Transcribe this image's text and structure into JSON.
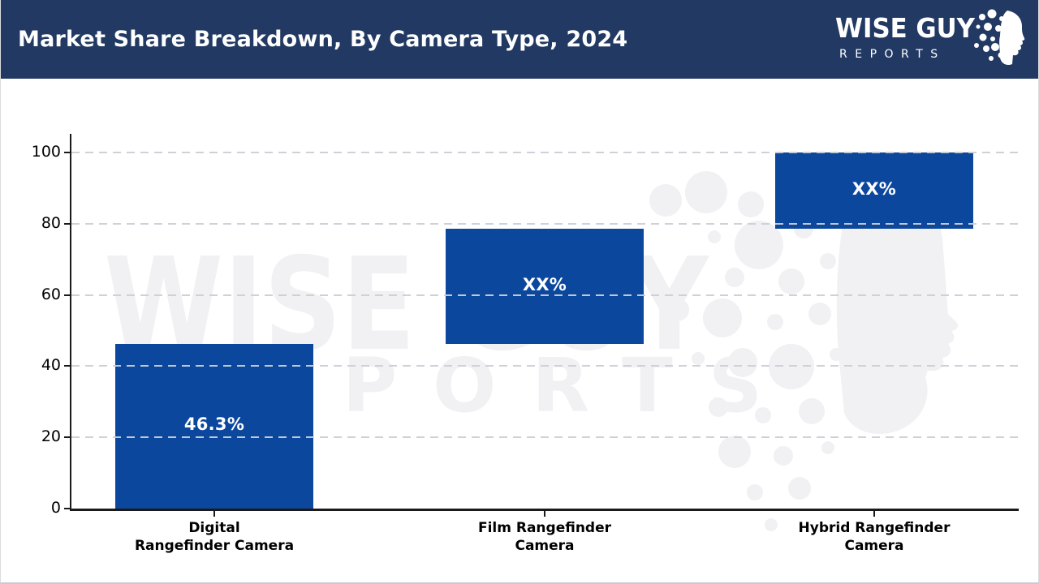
{
  "header": {
    "title": "Market Share Breakdown, By Camera Type, 2024",
    "bg_color": "#223a63",
    "logo": {
      "line1": "WISE GUY",
      "line2": "REPORTS"
    }
  },
  "watermark": {
    "line1": "WISE GUY",
    "line2": "REPORTS"
  },
  "chart_data": {
    "type": "bar",
    "subtype": "waterfall",
    "title": "Market Share Breakdown, By Camera Type, 2024",
    "categories": [
      "Digital\nRangefinder Camera",
      "Film Rangefinder\nCamera",
      "Hybrid Rangefinder\nCamera"
    ],
    "series": [
      {
        "name": "Market Share %",
        "values": [
          46.3,
          32.3,
          21.4
        ]
      }
    ],
    "segments": [
      {
        "start": 0,
        "end": 46.3,
        "label": "46.3%"
      },
      {
        "start": 46.3,
        "end": 78.6,
        "label": "XX%"
      },
      {
        "start": 78.6,
        "end": 100,
        "label": "XX%"
      }
    ],
    "xlabel": "",
    "ylabel": "",
    "ylim": [
      0,
      100
    ],
    "yticks": [
      0,
      20,
      40,
      60,
      80,
      100
    ],
    "grid": "horizontal-dashed",
    "legend": "none",
    "bar_color": "#0c479e",
    "bar_label_color": "#ffffff",
    "axis_color": "#1a1a1a"
  }
}
